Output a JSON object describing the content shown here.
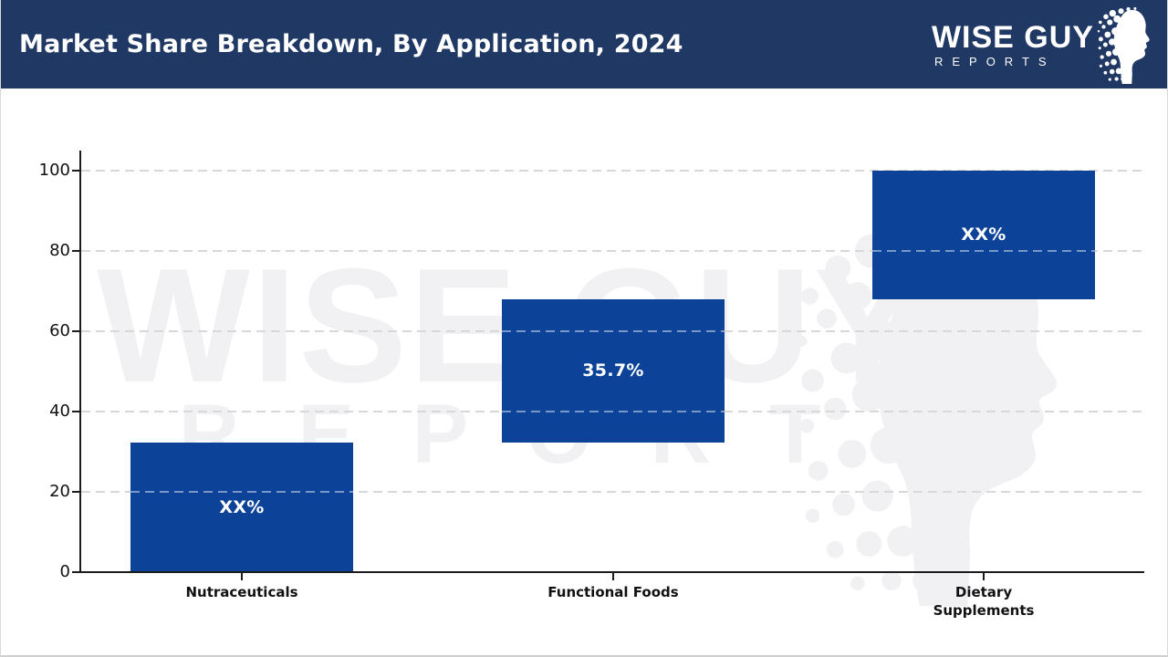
{
  "header": {
    "title": "Market Share Breakdown, By Application, 2024",
    "bg_color": "#1f3864",
    "brand": {
      "line1": "WISE GUY",
      "line2": "REPORTS"
    }
  },
  "watermark": {
    "line1": "WISE GUY",
    "line2": "REPORTS"
  },
  "chart_data": {
    "type": "bar",
    "subtype": "floating_waterfall_segments",
    "title": "Market Share Breakdown, By Application, 2024",
    "categories": [
      "Nutraceuticals",
      "Functional Foods",
      "Dietary Supplements"
    ],
    "category_label_lines": [
      [
        "Nutraceuticals"
      ],
      [
        "Functional Foods"
      ],
      [
        "Dietary",
        "Supplements"
      ]
    ],
    "segments": [
      {
        "category": "Nutraceuticals",
        "start": 0,
        "end": 32.3,
        "value_label": "XX%"
      },
      {
        "category": "Functional Foods",
        "start": 32.3,
        "end": 68.0,
        "value_label": "35.7%"
      },
      {
        "category": "Dietary Supplements",
        "start": 68.0,
        "end": 100.0,
        "value_label": "XX%"
      }
    ],
    "ylim": [
      0,
      100
    ],
    "yticks": [
      0,
      20,
      40,
      60,
      80,
      100
    ],
    "grid": "horizontal dashed",
    "legend": "none",
    "bar_color": "#0c4399",
    "bar_label_color": "#ffffff",
    "axis_color": "#1c1c1c",
    "grid_color": "#d8d8d8"
  }
}
